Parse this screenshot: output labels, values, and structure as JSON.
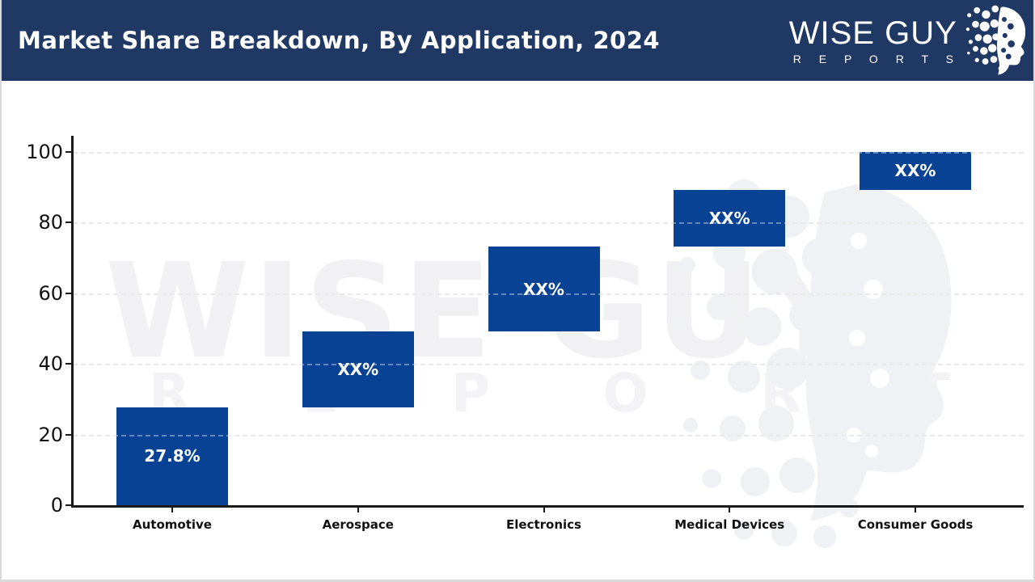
{
  "header": {
    "title": "Market Share Breakdown, By Application, 2024",
    "bg_color": "#1f3864",
    "logo": {
      "line1": "WISE GUY",
      "line2": "R E P O R T S"
    }
  },
  "watermark": {
    "line1": "WISE GUY",
    "line2": "R E P O R T S"
  },
  "chart_data": {
    "type": "bar",
    "subtype": "waterfall",
    "title": "Market Share Breakdown, By Application, 2024",
    "categories": [
      "Automotive",
      "Aerospace",
      "Electronics",
      "Medical Devices",
      "Consumer Goods"
    ],
    "segments": [
      {
        "category": "Automotive",
        "start": 0,
        "end": 27.8,
        "label": "27.8%"
      },
      {
        "category": "Aerospace",
        "start": 27.8,
        "end": 49.2,
        "label": "XX%"
      },
      {
        "category": "Electronics",
        "start": 49.2,
        "end": 73.2,
        "label": "XX%"
      },
      {
        "category": "Medical Devices",
        "start": 73.2,
        "end": 89.3,
        "label": "XX%"
      },
      {
        "category": "Consumer Goods",
        "start": 89.3,
        "end": 100,
        "label": "XX%"
      }
    ],
    "y_ticks": [
      0,
      20,
      40,
      60,
      80,
      100
    ],
    "ylim": [
      0,
      104.5
    ],
    "xlabel": "",
    "ylabel": "",
    "bar_color": "#084294",
    "grid": true,
    "grid_style": "dashed",
    "legend": "none"
  }
}
